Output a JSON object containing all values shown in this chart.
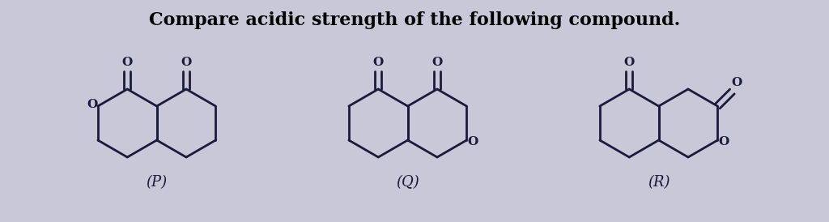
{
  "title": "Compare acidic strength of the following compound.",
  "title_fontsize": 16,
  "title_fontweight": "bold",
  "background_color": "#c8c8d8",
  "labels": [
    "(P)",
    "(Q)",
    "(R)"
  ],
  "label_fontsize": 13,
  "bond_color": "#1a1a3a",
  "bond_lw": 2.0,
  "text_color": "#1a1a3a"
}
